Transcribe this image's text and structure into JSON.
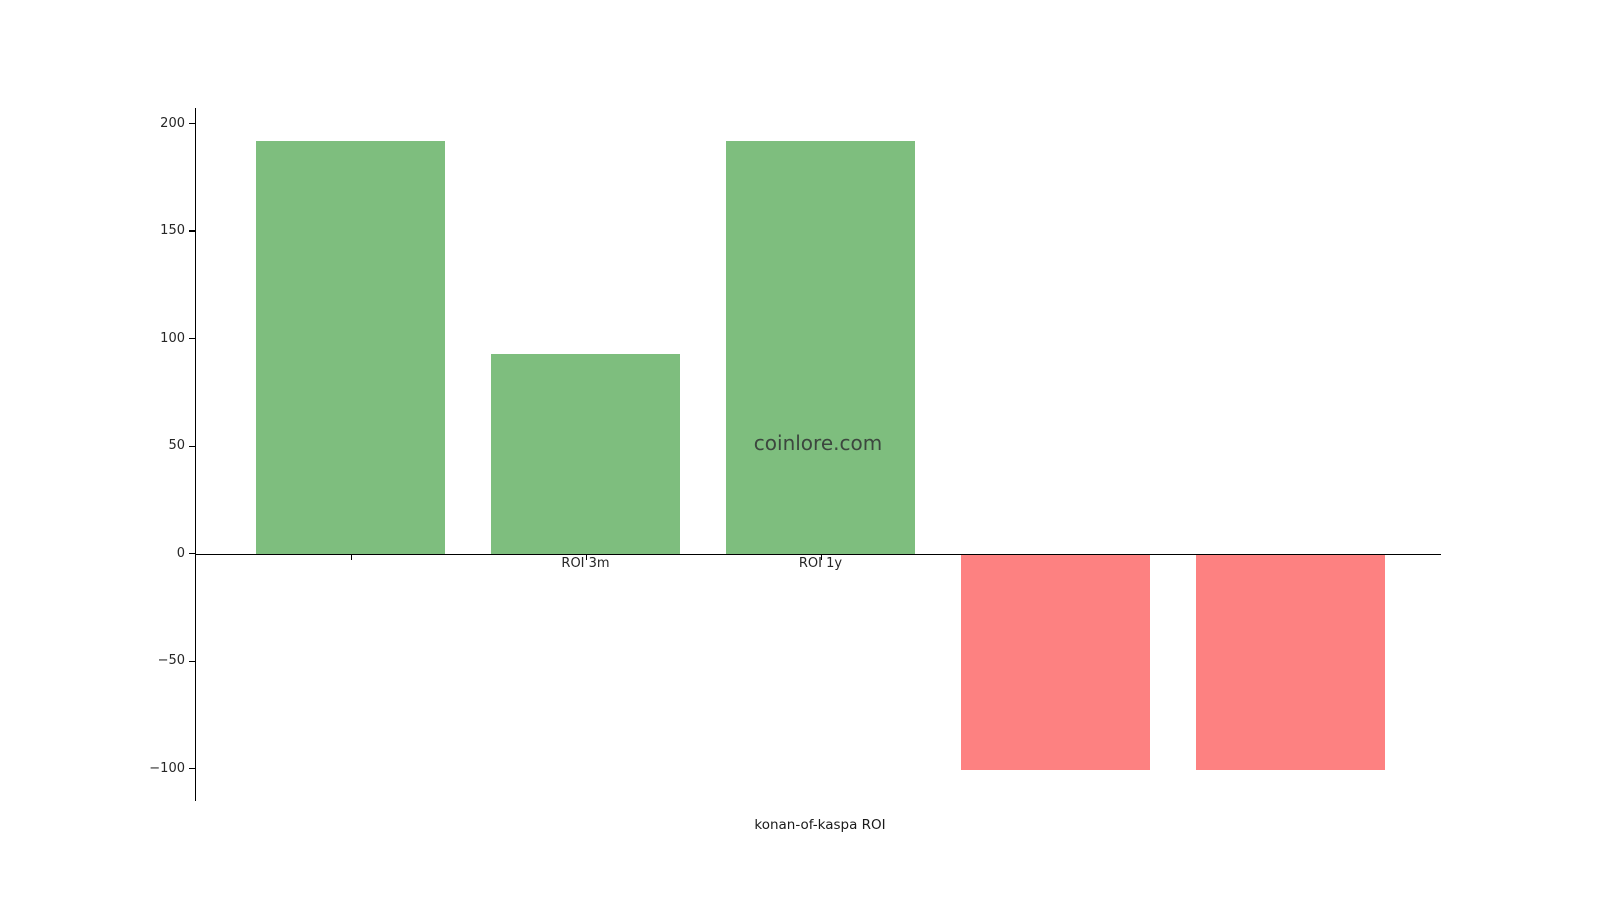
{
  "page": {
    "background_color": "#ffffff"
  },
  "watermark": {
    "text": "coinlore.com"
  },
  "chart_data": {
    "type": "bar",
    "title": "",
    "xlabel": "konan-of-kaspa ROI",
    "ylabel": "",
    "categories": [
      "",
      "ROI 3m",
      "ROI 1y",
      "",
      ""
    ],
    "values": [
      192,
      93,
      192,
      -100,
      -100
    ],
    "x_tick_marks": [
      true,
      true,
      true,
      false,
      false
    ],
    "y_ticks": [
      200,
      150,
      100,
      50,
      0,
      -50,
      -100
    ],
    "y_tick_labels": [
      "200",
      "150",
      "100",
      "50",
      "0",
      "−50",
      "−100"
    ],
    "ylim": [
      -115,
      207
    ],
    "xlim": [
      -0.655,
      4.64
    ],
    "grid": false,
    "legend": "none",
    "positive_color": "#7ebe7e",
    "negative_color": "#fd8181",
    "axis_color": "#000000",
    "tick_label_color": "#262626"
  }
}
